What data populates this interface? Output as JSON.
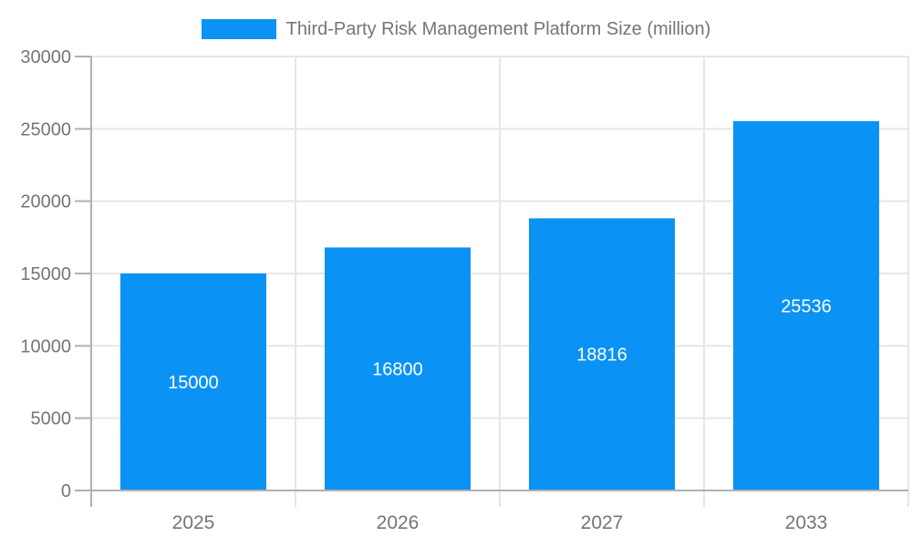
{
  "chart_data": {
    "type": "bar",
    "title": "Third-Party Risk Management Platform Size (million)",
    "categories": [
      "2025",
      "2026",
      "2027",
      "2033"
    ],
    "values": [
      15000,
      16800,
      18816,
      25536
    ],
    "bar_labels": [
      "15000",
      "16800",
      "18816",
      "25536"
    ],
    "xlabel": "",
    "ylabel": "",
    "ylim": [
      0,
      30000
    ],
    "ytick_step": 5000,
    "ytick_labels": [
      "0",
      "5000",
      "10000",
      "15000",
      "20000",
      "25000",
      "30000"
    ],
    "grid": true,
    "legend_position": "top-center",
    "colors": {
      "bar": "#0a92f5",
      "grid": "#e6e6e6",
      "axis": "#b0b0b0",
      "tick_text": "#757575",
      "title_text": "#757575",
      "bar_label_text": "#ffffff",
      "background": "#ffffff"
    }
  }
}
